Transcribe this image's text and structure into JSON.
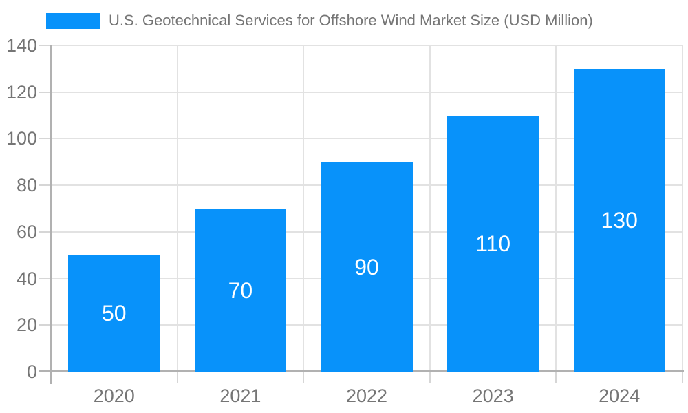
{
  "chart_data": {
    "type": "bar",
    "title": "U.S. Geotechnical Services for Offshore Wind Market Size (USD Million)",
    "categories": [
      "2020",
      "2021",
      "2022",
      "2023",
      "2024"
    ],
    "values": [
      50,
      70,
      90,
      110,
      130
    ],
    "bar_labels": [
      "50",
      "70",
      "90",
      "110",
      "130"
    ],
    "xlabel": "",
    "ylabel": "",
    "ylim": [
      0,
      140
    ],
    "ytick_step": 20,
    "ytick_labels": [
      "0",
      "20",
      "40",
      "60",
      "80",
      "100",
      "120",
      "140"
    ],
    "grid": true,
    "legend_position": "top-left",
    "colors": {
      "bar": "#0892fa",
      "bar_label_text": "#ffffff",
      "axis_line": "#b1b1b1",
      "gridline": "#e2e2e2",
      "tick_mark": "#d6d6d6",
      "label_text": "#757575",
      "background": "#ffffff"
    }
  }
}
